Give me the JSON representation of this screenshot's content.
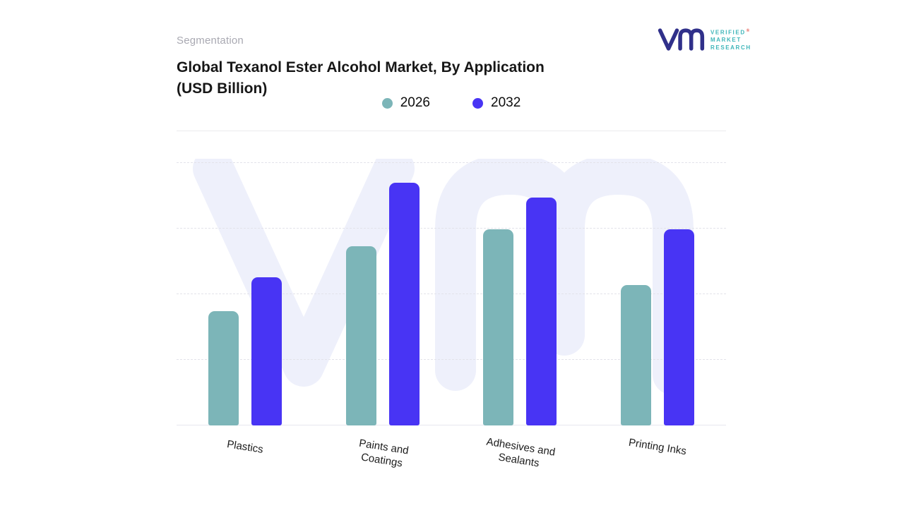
{
  "page": {
    "eyebrow": "Segmentation",
    "title_line1": "Global Texanol Ester Alcohol Market, By Application",
    "title_line2": "(USD Billion)"
  },
  "logo": {
    "lines": [
      "VERIFIED",
      "MARKET",
      "RESEARCH"
    ],
    "registered": "®",
    "mark_color": "#30308a",
    "text_color": "#3fb6ba"
  },
  "chart_data": {
    "type": "bar",
    "title": "Global Texanol Ester Alcohol Market, By Application (USD Billion)",
    "categories": [
      "Plastics",
      "Paints and Coatings",
      "Adhesives and Sealants",
      "Printing Inks"
    ],
    "series": [
      {
        "name": "2026",
        "color": "#7cb5b8",
        "values": [
          47,
          74,
          81,
          58
        ]
      },
      {
        "name": "2032",
        "color": "#4834f4",
        "values": [
          61,
          100,
          94,
          81
        ]
      }
    ],
    "xlabel": "",
    "ylabel": "",
    "ylim": [
      0,
      110
    ],
    "grid": "dashed-horizontal",
    "legend_position": "top-center",
    "note": "No numeric axis shown; values estimated from relative bar heights (index, tallest bar = 100)"
  }
}
